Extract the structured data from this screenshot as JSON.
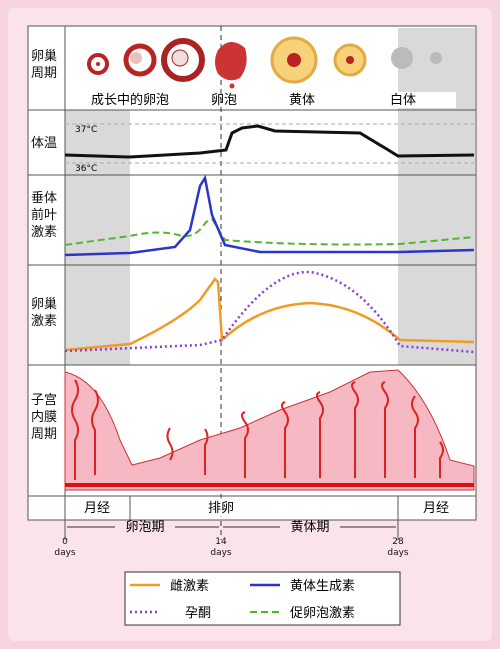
{
  "row_labels": [
    "卵巢周期",
    "体温",
    "垂体前叶激素",
    "卵巢激素",
    "子宫内膜周期"
  ],
  "ovary_stages": [
    "成长中的卵泡",
    "卵泡",
    "黄体",
    "白体"
  ],
  "temperature_ticks": [
    "37°C",
    "36°C"
  ],
  "menstruation": [
    "月经",
    "月经"
  ],
  "ovulation": "排卵",
  "phases": [
    "卵泡期",
    "黄体期"
  ],
  "day_markers": [
    "0 days",
    "14 days",
    "28 days"
  ],
  "legend": [
    "雌激素",
    "黄体生成素",
    "孕酮",
    "促卵泡激素"
  ]
}
